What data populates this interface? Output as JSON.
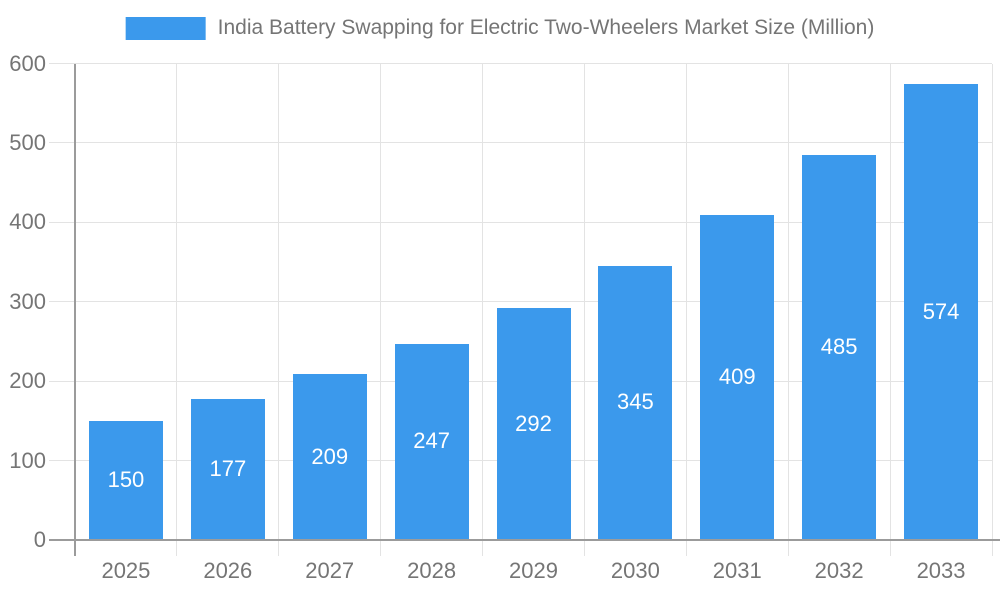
{
  "legend": {
    "label": "India Battery Swapping for Electric Two-Wheelers Market Size (Million)"
  },
  "chart_data": {
    "type": "bar",
    "title": "India Battery Swapping for Electric Two-Wheelers Market Size (Million)",
    "categories": [
      "2025",
      "2026",
      "2027",
      "2028",
      "2029",
      "2030",
      "2031",
      "2032",
      "2033"
    ],
    "values": [
      150,
      177,
      209,
      247,
      292,
      345,
      409,
      485,
      574
    ],
    "xlabel": "",
    "ylabel": "",
    "ylim": [
      0,
      600
    ],
    "yticks": [
      0,
      100,
      200,
      300,
      400,
      500,
      600
    ],
    "grid": true,
    "legend_position": "top",
    "value_labels": "inside-center",
    "colors": {
      "bar_fill": "#3b99ec",
      "value_label": "#ffffff",
      "axis_text": "#757575",
      "grid_line": "#e3e3e3",
      "axis_line": "#9b9b9b",
      "background": "#ffffff"
    }
  }
}
